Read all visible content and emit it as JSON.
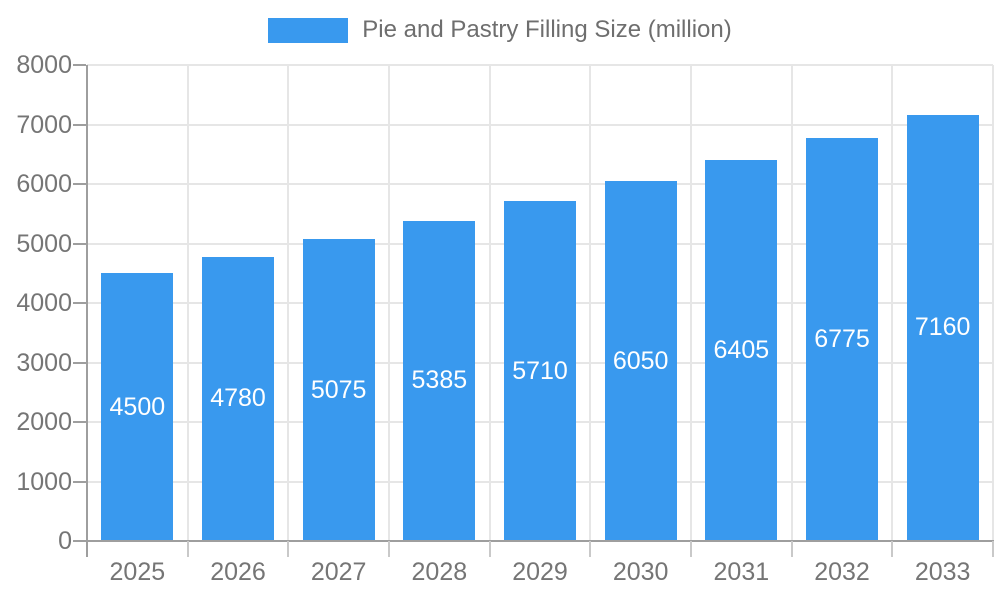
{
  "chart_data": {
    "type": "bar",
    "title": "Pie and Pastry Filling Size (million)",
    "categories": [
      "2025",
      "2026",
      "2027",
      "2028",
      "2029",
      "2030",
      "2031",
      "2032",
      "2033"
    ],
    "series": [
      {
        "name": "Pie and Pastry Filling Size (million)",
        "values": [
          4500,
          4780,
          5075,
          5385,
          5710,
          6050,
          6405,
          6775,
          7160
        ]
      }
    ],
    "value_labels": [
      4500,
      4780,
      5075,
      5385,
      5710,
      6050,
      6405,
      6775,
      7160
    ],
    "value_label_position": "inside-center",
    "xlabel": "",
    "ylabel": "",
    "ylim": [
      0,
      8000
    ],
    "ytick_step": 1000,
    "ytick_labels": [
      "0",
      "1000",
      "2000",
      "3000",
      "4000",
      "5000",
      "6000",
      "7000",
      "8000"
    ],
    "grid": true,
    "legend_position": "top-center",
    "colors": {
      "bar": "#3999EE",
      "grid": "#E6E6E6",
      "axis_line": "#9E9E9E",
      "x_tick": "#C9C9C9",
      "axis_label": "#757575",
      "legend_label": "#6E6E6E",
      "value_label": "#FFFFFF",
      "background": "#FFFFFF"
    }
  }
}
